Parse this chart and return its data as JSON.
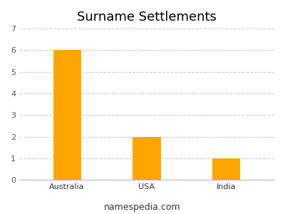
{
  "title": "Surname Settlements",
  "categories": [
    "Australia",
    "USA",
    "India"
  ],
  "values": [
    6,
    2,
    1
  ],
  "bar_color": "#FFA500",
  "ylim": [
    0,
    7
  ],
  "yticks": [
    0,
    1,
    2,
    3,
    4,
    5,
    6,
    7
  ],
  "grid_color": "#cccccc",
  "background_color": "#ffffff",
  "footer_text": "namespedia.com",
  "title_fontsize": 13,
  "tick_fontsize": 8,
  "footer_fontsize": 9,
  "bar_width": 0.35
}
